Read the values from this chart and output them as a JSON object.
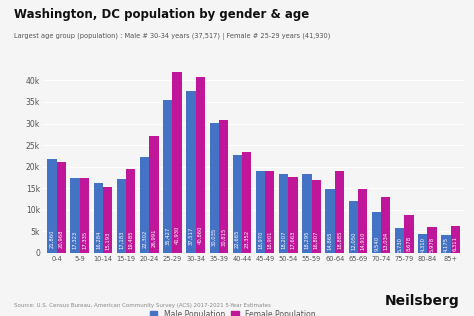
{
  "title": "Washington, DC population by gender & age",
  "subtitle": "Largest age group (population) : Male # 30-34 years (37,517) | Female # 25-29 years (41,930)",
  "source": "Source: U.S. Census Bureau, American Community Survey (ACS) 2017-2021 5-Year Estimates",
  "brand": "Neilsberg",
  "categories": [
    "0-4",
    "5-9",
    "10-14",
    "15-19",
    "20-24",
    "25-29",
    "30-34",
    "35-39",
    "40-44",
    "45-49",
    "50-54",
    "55-59",
    "60-64",
    "65-69",
    "70-74",
    "75-79",
    "80-84",
    "85+"
  ],
  "male": [
    21860,
    17323,
    16284,
    17183,
    22302,
    35427,
    37517,
    30035,
    22665,
    18970,
    18207,
    18295,
    14865,
    12050,
    9540,
    5730,
    4310,
    4175
  ],
  "female": [
    20968,
    17335,
    15193,
    19485,
    26991,
    41930,
    40860,
    30815,
    23352,
    18901,
    17663,
    16807,
    18885,
    14910,
    13034,
    8678,
    5978,
    6311
  ],
  "male_color": "#4472C4",
  "female_color": "#C0179A",
  "bg_color": "#f5f5f5",
  "plot_bg_color": "#f5f5f5",
  "grid_color": "#ffffff",
  "bar_label_color": "#ffffff",
  "bar_label_fontsize": 3.8,
  "ylim": [
    0,
    44000
  ],
  "yticks": [
    0,
    5000,
    10000,
    15000,
    20000,
    25000,
    30000,
    35000,
    40000
  ],
  "ytick_labels": [
    "0",
    "5k",
    "10k",
    "15k",
    "20k",
    "25k",
    "30k",
    "35k",
    "40k"
  ]
}
